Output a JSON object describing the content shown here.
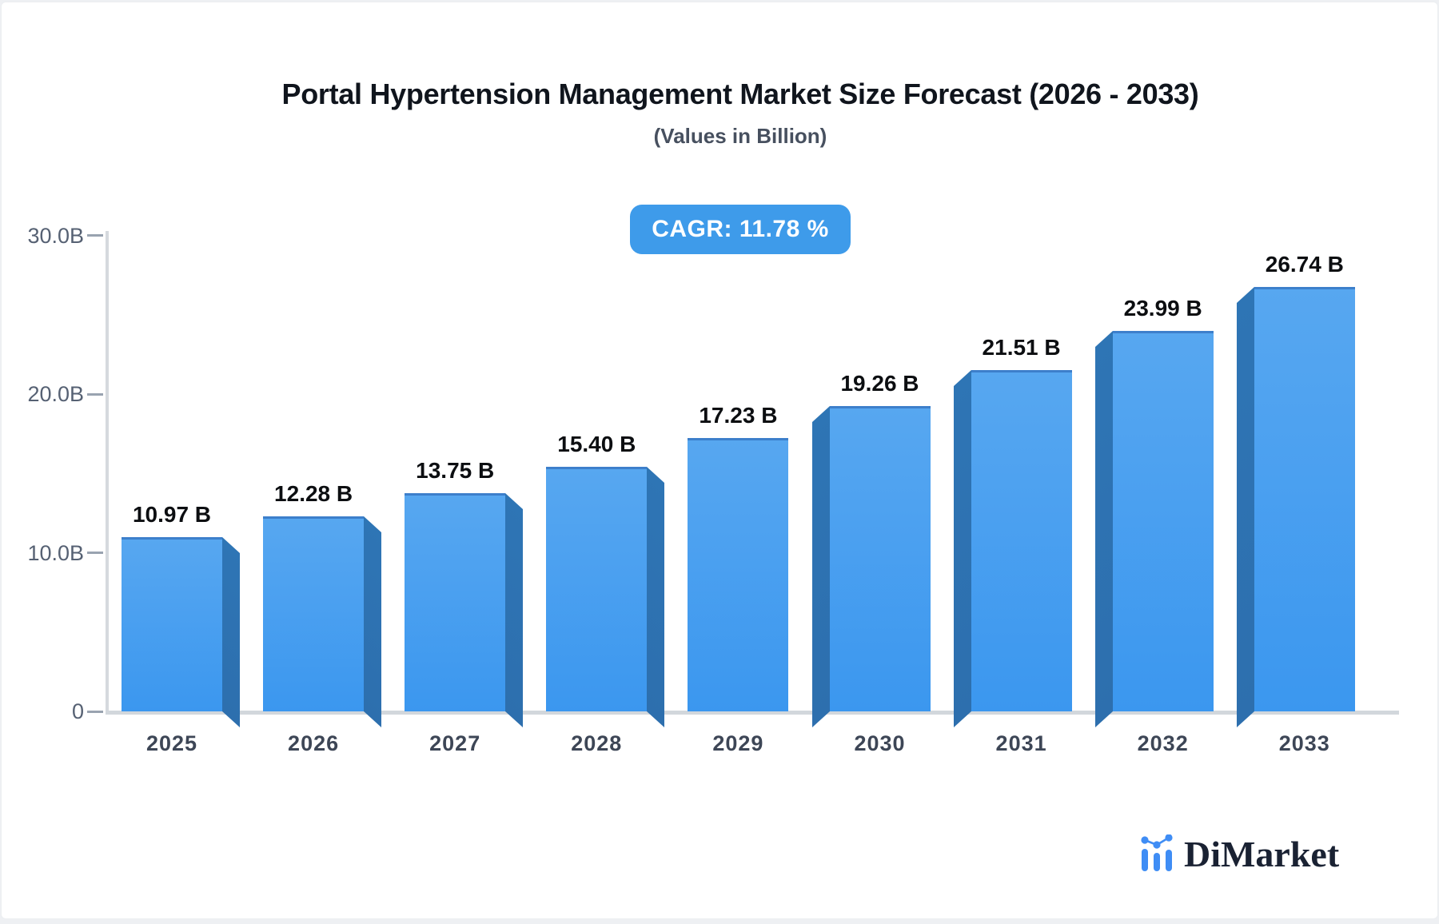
{
  "header": {
    "title": "Portal Hypertension Management Market Size Forecast (2026 - 2033)",
    "subtitle": "(Values in Billion)"
  },
  "cagr_badge": {
    "label": "CAGR: 11.78 %"
  },
  "chart_data": {
    "type": "bar",
    "title": "Portal Hypertension Management Market Size Forecast (2026 - 2033)",
    "subtitle": "(Values in Billion)",
    "categories": [
      "2025",
      "2026",
      "2027",
      "2028",
      "2029",
      "2030",
      "2031",
      "2032",
      "2033"
    ],
    "values": [
      10.97,
      12.28,
      13.75,
      15.4,
      17.23,
      19.26,
      21.51,
      23.99,
      26.74
    ],
    "value_labels": [
      "10.97 B",
      "12.28 B",
      "13.75 B",
      "15.40 B",
      "17.23 B",
      "19.26 B",
      "21.51 B",
      "23.99 B",
      "26.74 B"
    ],
    "xlabel": "",
    "ylabel": "",
    "ylim": [
      0,
      30
    ],
    "y_ticks": [
      {
        "value": 30,
        "label": "30.0B"
      },
      {
        "value": 20,
        "label": "20.0B"
      },
      {
        "value": 10,
        "label": "10.0B"
      },
      {
        "value": 0,
        "label": "0"
      }
    ],
    "grid": false,
    "legend": false,
    "bar_style": "3d-extruded-toward-center"
  },
  "branding": {
    "logo_text": "DiMarket",
    "logo_icon": "mini-bar-chart-icon"
  },
  "colors": {
    "bar_front_top": "#57a7f0",
    "bar_front_bottom": "#3b97ef",
    "bar_top_edge": "#3d7fcb",
    "bar_side": "#2e75b5",
    "badge_bg": "#3e9bea",
    "axis_line": "#d2d7dc",
    "tick_text": "#566173",
    "category_text": "#3d4656",
    "value_text": "#0c0e11",
    "logo_icon_color": "#3f8df5",
    "logo_text_color": "#1a2233"
  }
}
